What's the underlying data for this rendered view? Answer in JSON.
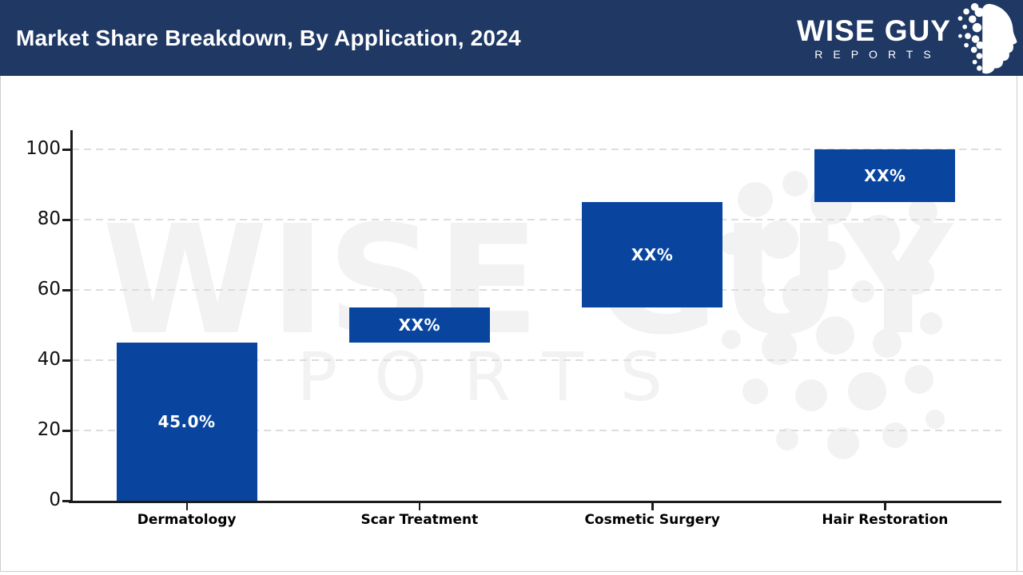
{
  "header": {
    "title": "Market Share Breakdown, By Application, 2024",
    "logo": {
      "wordmark": "WISE GUY",
      "subtext": "REPORTS"
    }
  },
  "watermark": {
    "line1": "WISE GUY",
    "line2": "REPORTS"
  },
  "colors": {
    "header_bg": "#1F3864",
    "bar": "#09459E",
    "bar_label": "#FFFFFF",
    "grid": "#DDDDDD",
    "axis": "#1C1C1C",
    "tick_label": "#111111",
    "watermark": "#F2F2F2",
    "page_border": "#CCCCCC"
  },
  "chart_data": {
    "type": "bar",
    "subtype": "floating-column-waterfall",
    "title": "Market Share Breakdown, By Application, 2024",
    "categories": [
      "Dermatology",
      "Scar Treatment",
      "Cosmetic Surgery",
      "Hair Restoration"
    ],
    "bars": [
      {
        "category": "Dermatology",
        "start": 0,
        "end": 45,
        "label": "45.0%"
      },
      {
        "category": "Scar Treatment",
        "start": 45,
        "end": 55,
        "label": "XX%"
      },
      {
        "category": "Cosmetic Surgery",
        "start": 55,
        "end": 85,
        "label": "XX%"
      },
      {
        "category": "Hair Restoration",
        "start": 85,
        "end": 100,
        "label": "XX%"
      }
    ],
    "xlabel": "",
    "ylabel": "",
    "ylim": [
      0,
      106
    ],
    "yticks": [
      0,
      20,
      40,
      60,
      80,
      100
    ],
    "grid": "horizontal-dashed",
    "legend": null
  }
}
